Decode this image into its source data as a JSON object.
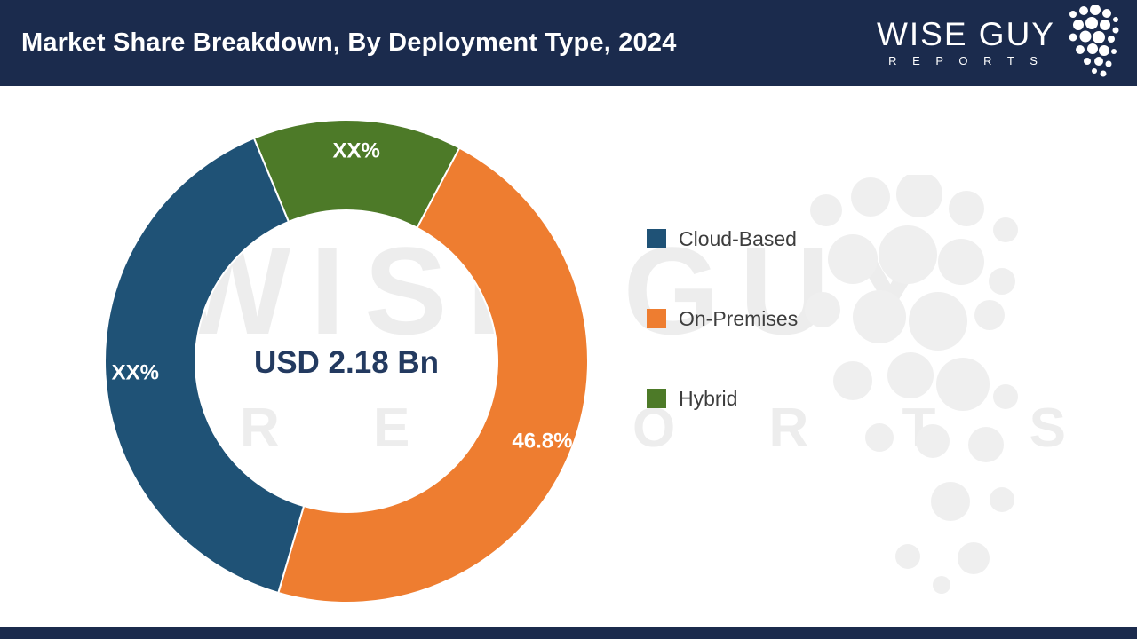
{
  "header": {
    "title": "Market Share Breakdown, By Deployment Type, 2024",
    "logo_line1": "WISE GUY",
    "logo_line2": "R E P O R T S"
  },
  "watermark": {
    "line1": "WISE GUY",
    "line2": "R E P O R T S"
  },
  "chart_data": {
    "type": "pie",
    "subtype": "donut",
    "title": "Market Share Breakdown, By Deployment Type, 2024",
    "center_label": "USD 2.18 Bn",
    "start_angle_deg": -22.5,
    "legend_position": "right",
    "segments": [
      {
        "name": "Hybrid",
        "label": "XX%",
        "value": 14.0,
        "color": "#4d7a28"
      },
      {
        "name": "On-Premises",
        "label": "46.8%",
        "value": 46.8,
        "color": "#ee7d30"
      },
      {
        "name": "Cloud-Based",
        "label": "XX%",
        "value": 39.2,
        "color": "#1f5276"
      }
    ],
    "legend": [
      {
        "name": "Cloud-Based",
        "color": "#1f5276"
      },
      {
        "name": "On-Premises",
        "color": "#ee7d30"
      },
      {
        "name": "Hybrid",
        "color": "#4d7a28"
      }
    ]
  },
  "colors": {
    "header_bg": "#1b2b4d",
    "footer_bg": "#1b2b4d",
    "center_text": "#233a60",
    "watermark": "#ededed"
  }
}
